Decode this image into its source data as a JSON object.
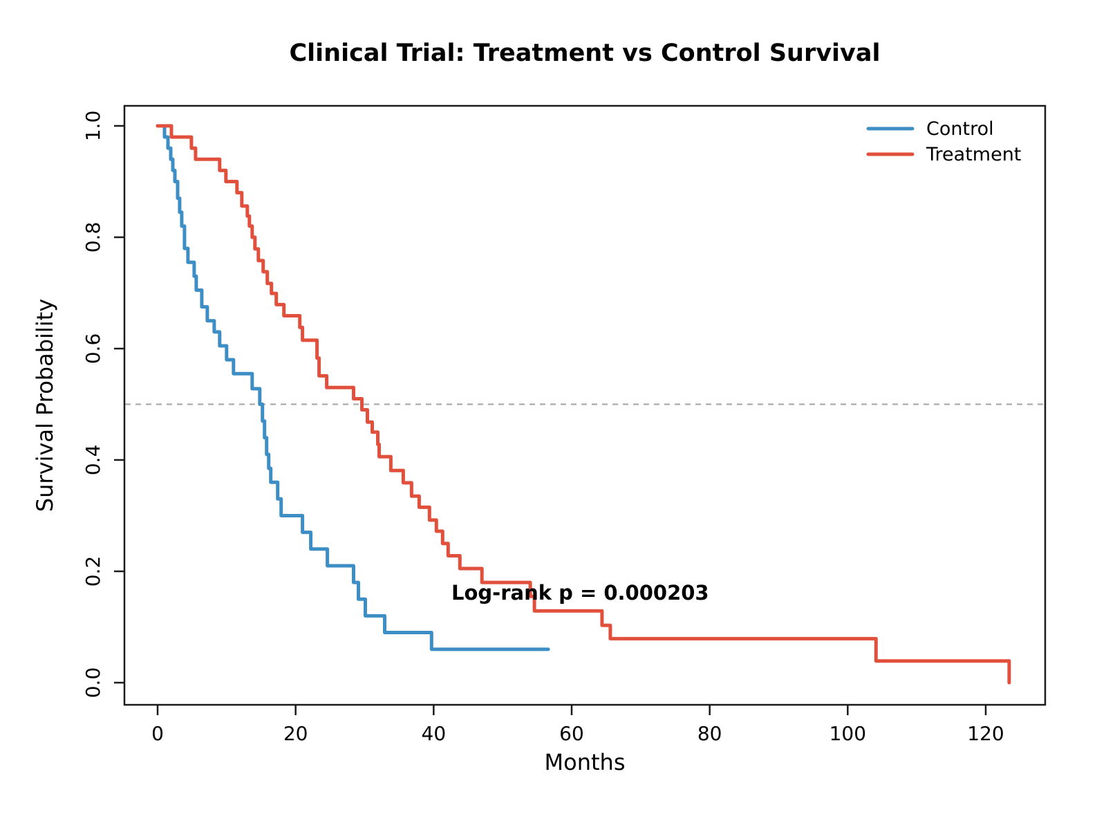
{
  "chart_data": {
    "type": "line",
    "subtype": "kaplan-meier-step-survival",
    "title": "Clinical Trial: Treatment vs Control Survival",
    "xlabel": "Months",
    "ylabel": "Survival Probability",
    "xlim": [
      -4.8,
      128.6
    ],
    "ylim": [
      -0.04,
      1.035
    ],
    "grid": false,
    "x_ticks": [
      0,
      20,
      40,
      60,
      80,
      100,
      120
    ],
    "x_tick_labels": [
      "0",
      "20",
      "40",
      "60",
      "80",
      "100",
      "120"
    ],
    "y_ticks": [
      0.0,
      0.2,
      0.4,
      0.6,
      0.8,
      1.0
    ],
    "y_tick_labels": [
      "0.0",
      "0.2",
      "0.4",
      "0.6",
      "0.8",
      "1.0"
    ],
    "reference_line": {
      "y": 0.5,
      "style": "dashed",
      "color": "#ababab"
    },
    "annotation": {
      "text": "Log-rank p = 0.000203"
    },
    "legend": {
      "position": "top-right",
      "entries": [
        {
          "label": "Control",
          "color": "#3e8ec6"
        },
        {
          "label": "Treatment",
          "color": "#e0503c"
        }
      ]
    },
    "series": [
      {
        "name": "Control",
        "color": "#3e8ec6",
        "points": [
          [
            0,
            1.0
          ],
          [
            1.0,
            0.98
          ],
          [
            1.5,
            0.96
          ],
          [
            1.9,
            0.94
          ],
          [
            2.2,
            0.92
          ],
          [
            2.5,
            0.9
          ],
          [
            2.9,
            0.87
          ],
          [
            3.2,
            0.845
          ],
          [
            3.5,
            0.82
          ],
          [
            3.9,
            0.78
          ],
          [
            4.4,
            0.755
          ],
          [
            5.3,
            0.73
          ],
          [
            5.6,
            0.705
          ],
          [
            6.4,
            0.675
          ],
          [
            7.2,
            0.65
          ],
          [
            8.2,
            0.63
          ],
          [
            9.0,
            0.605
          ],
          [
            10.0,
            0.58
          ],
          [
            11.0,
            0.555
          ],
          [
            13.7,
            0.528
          ],
          [
            14.8,
            0.5
          ],
          [
            15.2,
            0.47
          ],
          [
            15.5,
            0.44
          ],
          [
            15.8,
            0.41
          ],
          [
            16.1,
            0.385
          ],
          [
            16.4,
            0.36
          ],
          [
            17.4,
            0.33
          ],
          [
            17.9,
            0.3
          ],
          [
            21.0,
            0.27
          ],
          [
            22.2,
            0.24
          ],
          [
            24.6,
            0.21
          ],
          [
            28.4,
            0.18
          ],
          [
            29.1,
            0.15
          ],
          [
            30.1,
            0.12
          ],
          [
            32.9,
            0.09
          ],
          [
            39.7,
            0.06
          ],
          [
            56.6,
            0.06
          ]
        ]
      },
      {
        "name": "Treatment",
        "color": "#e0503c",
        "points": [
          [
            0,
            1.0
          ],
          [
            2.0,
            0.98
          ],
          [
            4.9,
            0.96
          ],
          [
            5.5,
            0.94
          ],
          [
            9.0,
            0.92
          ],
          [
            9.9,
            0.9
          ],
          [
            11.5,
            0.88
          ],
          [
            12.2,
            0.856
          ],
          [
            13.0,
            0.838
          ],
          [
            13.3,
            0.82
          ],
          [
            13.7,
            0.8
          ],
          [
            14.1,
            0.779
          ],
          [
            14.6,
            0.758
          ],
          [
            15.3,
            0.738
          ],
          [
            15.9,
            0.717
          ],
          [
            16.5,
            0.699
          ],
          [
            17.2,
            0.679
          ],
          [
            18.3,
            0.659
          ],
          [
            20.6,
            0.638
          ],
          [
            21.0,
            0.615
          ],
          [
            23.1,
            0.583
          ],
          [
            23.4,
            0.551
          ],
          [
            24.5,
            0.53
          ],
          [
            28.4,
            0.51
          ],
          [
            29.6,
            0.49
          ],
          [
            30.4,
            0.468
          ],
          [
            31.1,
            0.45
          ],
          [
            31.9,
            0.428
          ],
          [
            32.1,
            0.406
          ],
          [
            33.8,
            0.381
          ],
          [
            35.6,
            0.359
          ],
          [
            36.8,
            0.335
          ],
          [
            37.9,
            0.315
          ],
          [
            39.4,
            0.292
          ],
          [
            40.4,
            0.272
          ],
          [
            41.3,
            0.25
          ],
          [
            42.1,
            0.228
          ],
          [
            43.8,
            0.205
          ],
          [
            47.0,
            0.18
          ],
          [
            54.0,
            0.155
          ],
          [
            54.6,
            0.129
          ],
          [
            64.4,
            0.103
          ],
          [
            65.6,
            0.079
          ],
          [
            104.1,
            0.039
          ],
          [
            123.4,
            0.0
          ]
        ]
      }
    ]
  }
}
